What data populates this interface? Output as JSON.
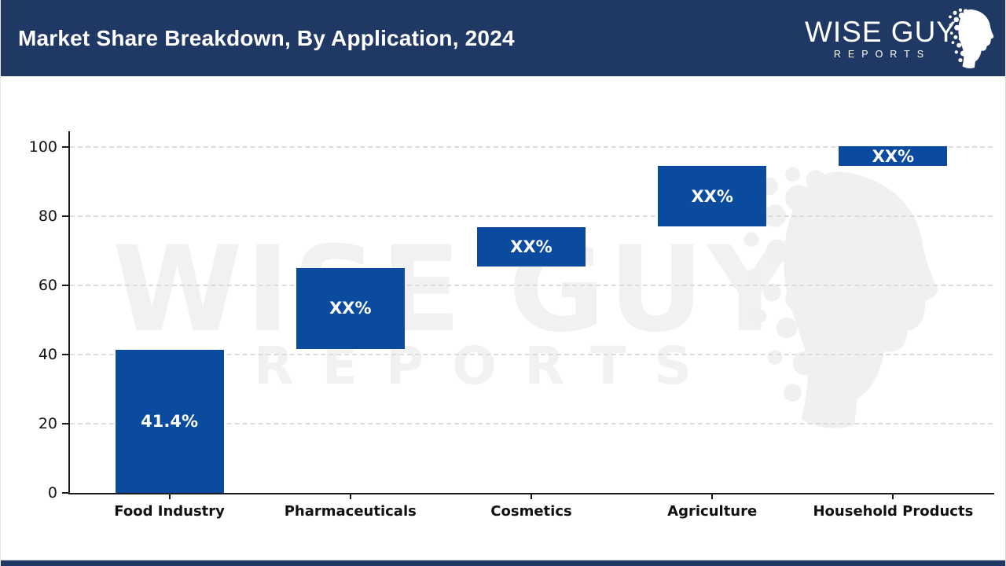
{
  "header": {
    "title": "Market Share Breakdown, By Application, 2024",
    "logo": {
      "brand_line1": "WISE GUY",
      "brand_line2": "REPORTS",
      "head_icon": "dotted-head-profile-icon"
    }
  },
  "watermark": {
    "line1": "WISE GUY",
    "line2": "REPORTS",
    "head_icon": "dotted-head-profile-icon"
  },
  "colors": {
    "header_bg": "#203864",
    "footer_bg": "#203864",
    "bar_fill": "#0a4a9f",
    "bar_label": "#ffffff",
    "gridline": "#dcdcdc",
    "axis": "#1a1a1a",
    "watermark": "#f1f1f1"
  },
  "chart_data": {
    "type": "bar",
    "subtype": "waterfall",
    "title": "Market Share Breakdown, By Application, 2024",
    "categories": [
      "Food Industry",
      "Pharmaceuticals",
      "Cosmetics",
      "Agriculture",
      "Household Products"
    ],
    "segments": [
      {
        "category": "Food Industry",
        "start": 0,
        "end": 41.4,
        "label": "41.4%"
      },
      {
        "category": "Pharmaceuticals",
        "start": 41.7,
        "end": 65.1,
        "label": "XX%"
      },
      {
        "category": "Cosmetics",
        "start": 65.4,
        "end": 76.8,
        "label": "XX%"
      },
      {
        "category": "Agriculture",
        "start": 77.0,
        "end": 94.5,
        "label": "XX%"
      },
      {
        "category": "Household Products",
        "start": 94.5,
        "end": 100.2,
        "label": "XX%"
      }
    ],
    "yticks": [
      0,
      20,
      40,
      60,
      80,
      100
    ],
    "ylim": [
      0,
      105
    ],
    "xlabel": "",
    "ylabel": "",
    "grid": "horizontal-dashed",
    "legend": "none"
  }
}
